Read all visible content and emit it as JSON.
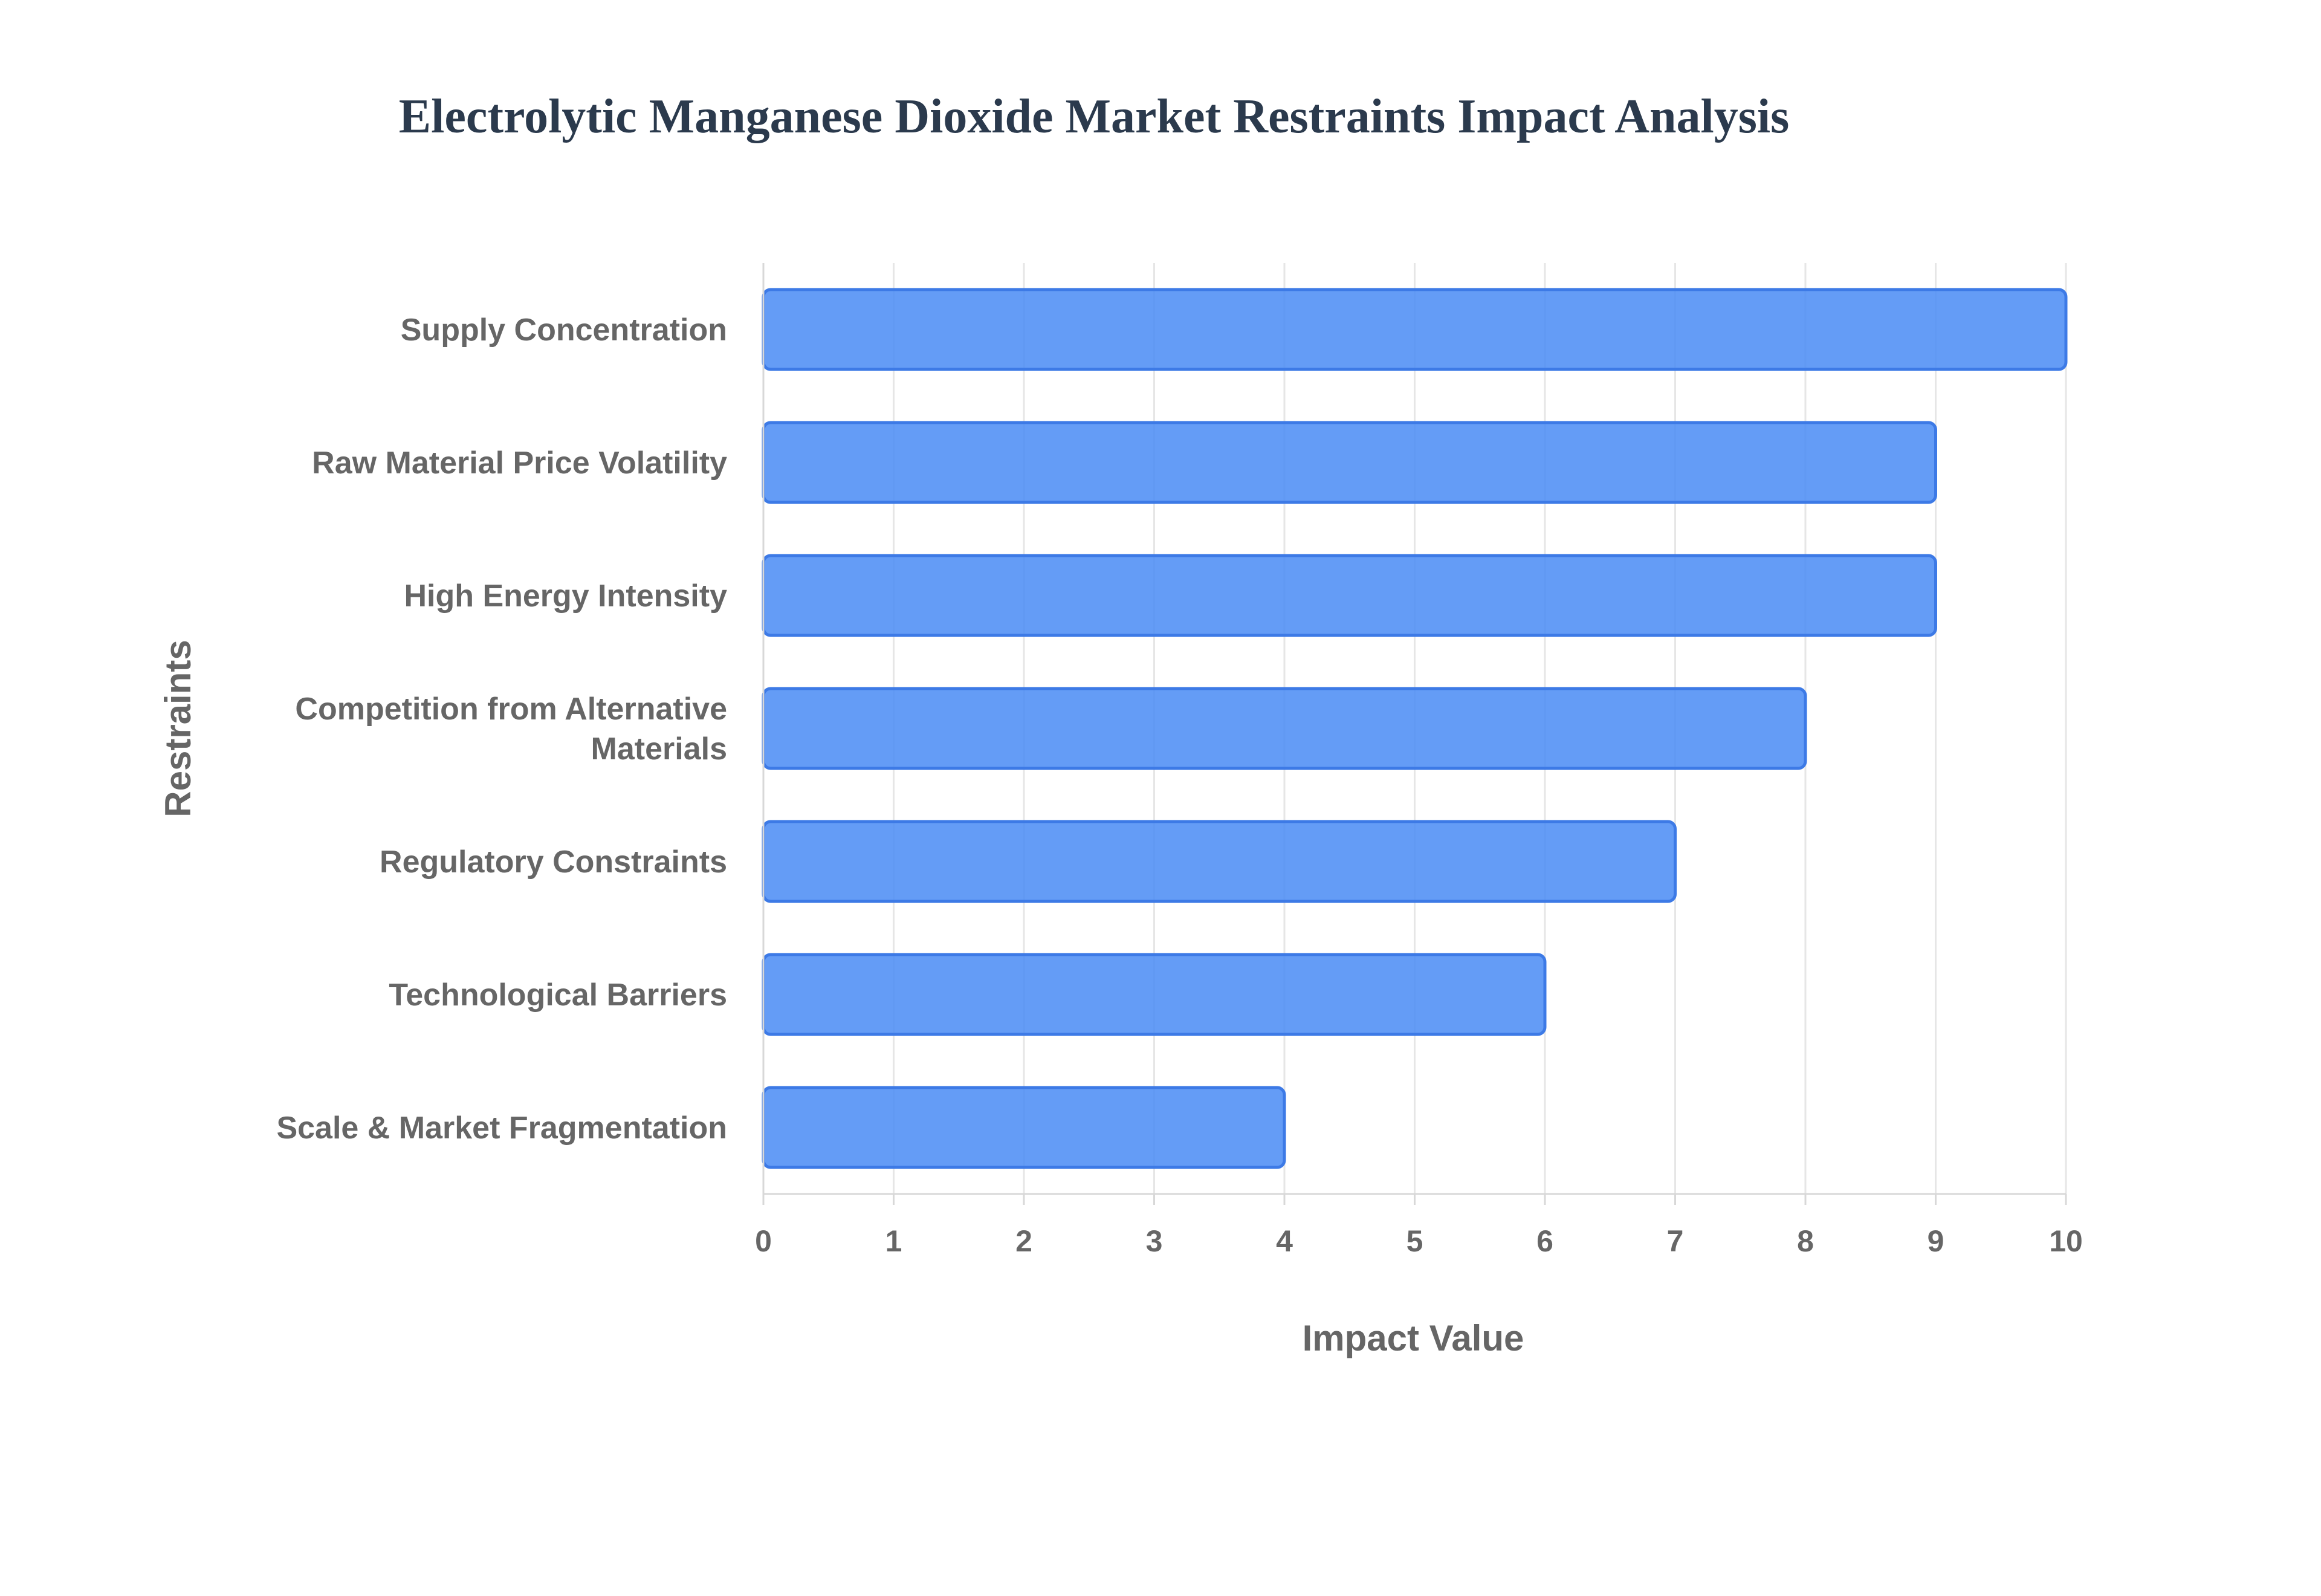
{
  "chart_data": {
    "type": "bar",
    "orientation": "horizontal",
    "title": "Electrolytic Manganese Dioxide Market Restraints Impact Analysis",
    "xlabel": "Impact Value",
    "ylabel": "Restraints",
    "xlim": [
      0,
      10
    ],
    "x_ticks": [
      "0",
      "1",
      "2",
      "3",
      "4",
      "5",
      "6",
      "7",
      "8",
      "9",
      "10"
    ],
    "grid": true,
    "bar_color": "#4f8ef5",
    "categories": [
      "Supply Concentration",
      "Raw Material Price Volatility",
      "High Energy Intensity",
      "Competition from Alternative Materials",
      "Regulatory Constraints",
      "Technological Barriers",
      "Scale & Market Fragmentation"
    ],
    "values": [
      10,
      9,
      9,
      8,
      7,
      6,
      4
    ]
  }
}
